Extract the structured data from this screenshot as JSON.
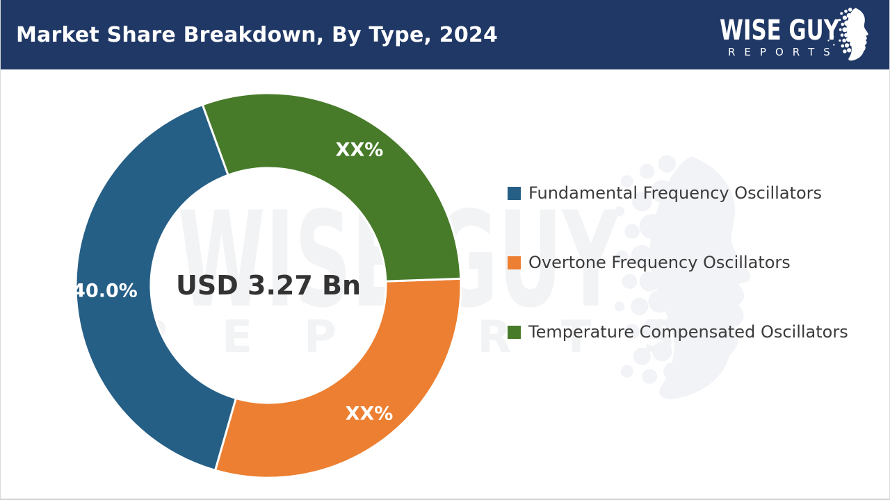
{
  "header": {
    "title": "Market Share Breakdown, By Type, 2024",
    "logo": {
      "line1": "WISE GUY",
      "line2": "REPORTS"
    }
  },
  "watermark": {
    "line1": "WISE GUY",
    "line2": "REPORTS"
  },
  "chart_data": {
    "type": "pie",
    "donut": true,
    "title": "Market Share Breakdown, By Type, 2024",
    "center_label": "USD 3.27 Bn",
    "start_angle_deg": 110,
    "counterclockwise": true,
    "legend_position": "right",
    "segments": [
      {
        "label": "Fundamental Frequency Oscillators",
        "value_pct": 40,
        "display_label": "40.0%",
        "color": "#265f86"
      },
      {
        "label": "Overtone Frequency Oscillators",
        "value_pct": 30,
        "display_label": "XX%",
        "color": "#ec7f31"
      },
      {
        "label": "Temperature Compensated Oscillators",
        "value_pct": 30,
        "display_label": "XX%",
        "color": "#477b2a"
      }
    ],
    "colors": {
      "header_bg": "#203865",
      "center_text": "#333333",
      "slice_labels": "#ffffff",
      "legend_text": "#3b3b3b",
      "watermark": "#f2f3f5"
    }
  }
}
